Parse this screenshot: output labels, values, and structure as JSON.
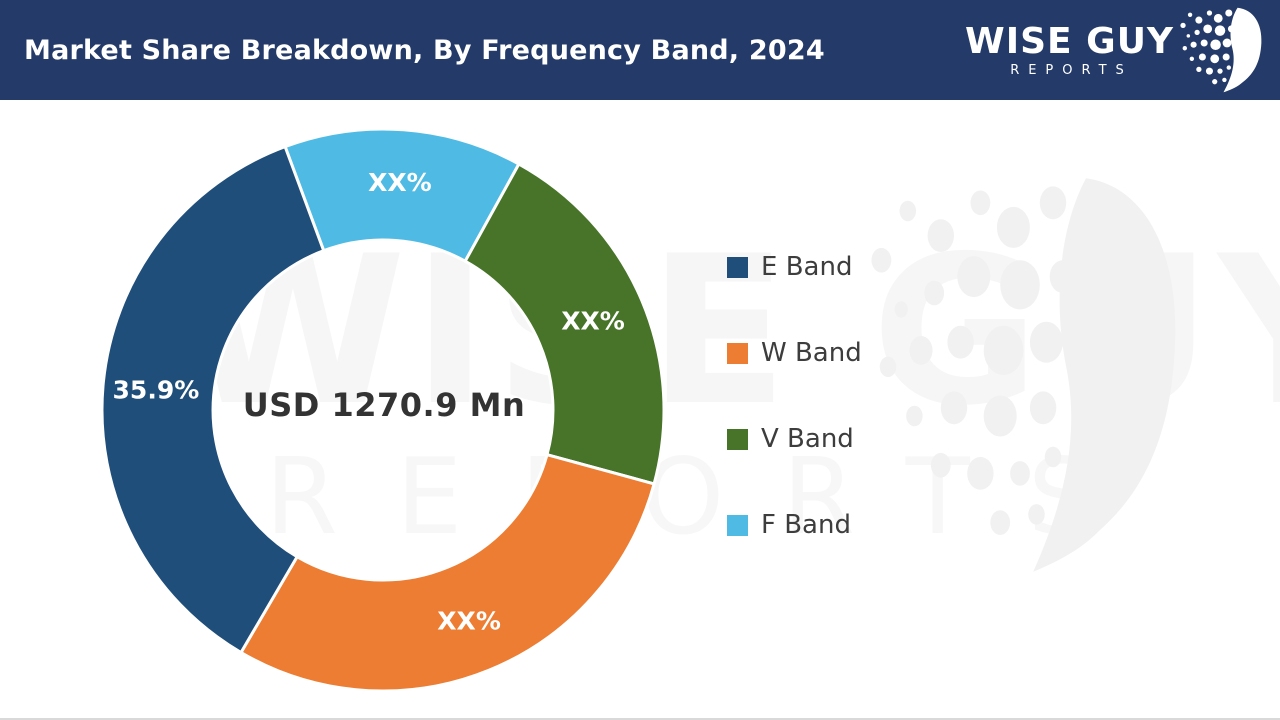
{
  "header": {
    "title": "Market Share Breakdown, By Frequency Band, 2024",
    "bg_color": "#243A68",
    "logo": {
      "wordmark": "WISE GUY",
      "tagline": "REPORTS"
    }
  },
  "watermark": {
    "line1": "WISE GUY",
    "line2": "REPORTS"
  },
  "chart_data": {
    "type": "pie",
    "subtype": "donut",
    "title": "Market Share Breakdown, By Frequency Band, 2024",
    "center_label": "USD 1270.9 Mn",
    "legend_position": "right",
    "start_angle_deg": -20.4,
    "draw_order_clockwise_from_top_left": [
      "F Band",
      "V Band",
      "W Band",
      "E Band"
    ],
    "segments": [
      {
        "name": "E Band",
        "color": "#1F4E7A",
        "slice_label": "35.9%",
        "share_pct_est": 35.9
      },
      {
        "name": "W Band",
        "color": "#EC7D32",
        "slice_label": "XX%",
        "share_pct_est": 29.2
      },
      {
        "name": "V Band",
        "color": "#477428",
        "slice_label": "XX%",
        "share_pct_est": 21.2
      },
      {
        "name": "F Band",
        "color": "#4FBBE4",
        "slice_label": "XX%",
        "share_pct_est": 13.7
      }
    ]
  }
}
